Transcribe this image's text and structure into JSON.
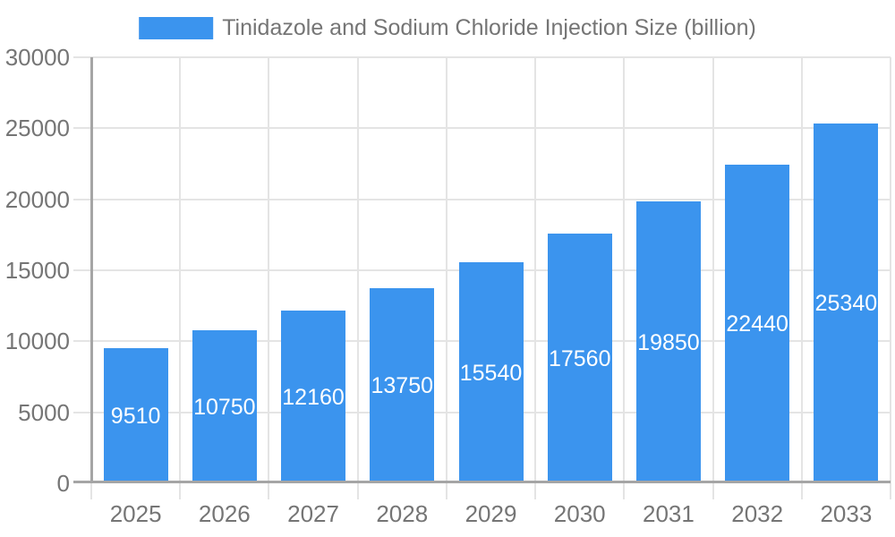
{
  "legend": {
    "label": "Tinidazole and Sodium Chloride Injection Size (billion)"
  },
  "colors": {
    "bar": "#3B94EE",
    "axis": "#A5A5A5",
    "grid": "#E4E4E4",
    "text": "#757575",
    "bar_label": "#FFFFFF",
    "background": "#FFFFFF"
  },
  "chart_data": {
    "type": "bar",
    "title": "Tinidazole and Sodium Chloride Injection Size (billion)",
    "categories": [
      "2025",
      "2026",
      "2027",
      "2028",
      "2029",
      "2030",
      "2031",
      "2032",
      "2033"
    ],
    "values": [
      9510,
      10750,
      12160,
      13750,
      15540,
      17560,
      19850,
      22440,
      25340
    ],
    "xlabel": "",
    "ylabel": "",
    "ylim": [
      0,
      30000
    ],
    "yticks": [
      0,
      5000,
      10000,
      15000,
      20000,
      25000,
      30000
    ],
    "grid": true,
    "legend_position": "top",
    "bar_value_labels": "inside-center"
  }
}
